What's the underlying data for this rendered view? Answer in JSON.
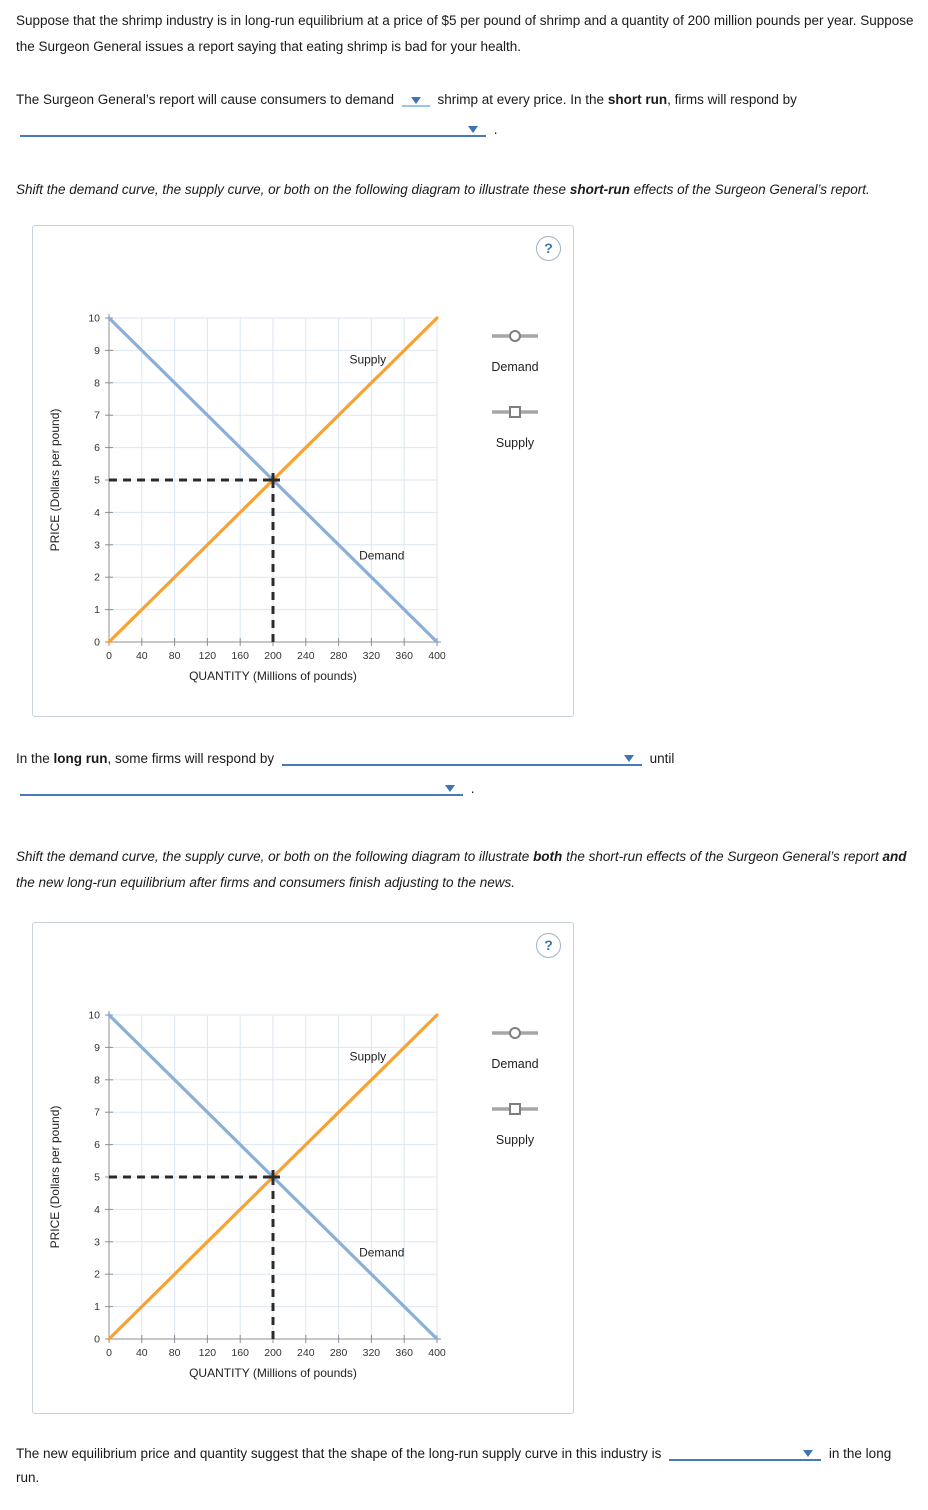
{
  "intro": {
    "text": "Suppose that the shrimp industry is in long-run equilibrium at a price of $5 per pound of shrimp and a quantity of 200 million pounds per year. Suppose the Surgeon General issues a report saying that eating shrimp is bad for your health."
  },
  "q1": {
    "part1": "The Surgeon General’s report will cause consumers to demand",
    "part2": "shrimp at every price. In the",
    "bold": "short run",
    "part3": ", firms will respond by",
    "period": "."
  },
  "instruction1": {
    "part1": "Shift the demand curve, the supply curve, or both on the following diagram to illustrate these",
    "bold": "short-run",
    "part2": "effects of the Surgeon General’s report."
  },
  "q2": {
    "part1": "In the",
    "bold": "long run",
    "part2": ", some firms will respond by",
    "part3": "until",
    "period": "."
  },
  "instruction2": {
    "part1": "Shift the demand curve, the supply curve, or both on the following diagram to illustrate",
    "bold1": "both",
    "part2": "the short-run effects of the Surgeon General’s report",
    "bold2": "and",
    "part3": "the new long-run equilibrium after firms and consumers finish adjusting to the news."
  },
  "q3": {
    "part1": "The new equilibrium price and quantity suggest that the shape of the long-run supply curve in this industry is",
    "part2": "in the long run."
  },
  "panel": {
    "help_label": "?",
    "tools": [
      {
        "label": "Demand",
        "marker": "circle"
      },
      {
        "label": "Supply",
        "marker": "square"
      }
    ]
  },
  "chart_data": [
    {
      "type": "line",
      "title": "",
      "xlabel": "QUANTITY (Millions of pounds)",
      "ylabel": "PRICE (Dollars per pound)",
      "xlim": [
        0,
        400
      ],
      "ylim": [
        0,
        10
      ],
      "xticks": [
        0,
        40,
        80,
        120,
        160,
        200,
        240,
        280,
        320,
        360,
        400
      ],
      "yticks": [
        0,
        1,
        2,
        3,
        4,
        5,
        6,
        7,
        8,
        9,
        10
      ],
      "grid": true,
      "series": [
        {
          "name": "Demand",
          "color": "#8aafd8",
          "x": [
            0,
            400
          ],
          "y": [
            10,
            0
          ],
          "label_pos": {
            "x": 305,
            "y": 2.55,
            "anchor": "start"
          }
        },
        {
          "name": "Supply",
          "color": "#f7a233",
          "x": [
            0,
            400
          ],
          "y": [
            0,
            10
          ],
          "label_pos": {
            "x": 338,
            "y": 8.6,
            "anchor": "end"
          }
        }
      ],
      "equilibrium": {
        "x": 200,
        "y": 5
      },
      "guides": {
        "price": 5,
        "quantity": 200
      }
    },
    {
      "type": "line",
      "title": "",
      "xlabel": "QUANTITY (Millions of pounds)",
      "ylabel": "PRICE (Dollars per pound)",
      "xlim": [
        0,
        400
      ],
      "ylim": [
        0,
        10
      ],
      "xticks": [
        0,
        40,
        80,
        120,
        160,
        200,
        240,
        280,
        320,
        360,
        400
      ],
      "yticks": [
        0,
        1,
        2,
        3,
        4,
        5,
        6,
        7,
        8,
        9,
        10
      ],
      "grid": true,
      "series": [
        {
          "name": "Demand",
          "color": "#8aafd8",
          "x": [
            0,
            400
          ],
          "y": [
            10,
            0
          ],
          "label_pos": {
            "x": 305,
            "y": 2.55,
            "anchor": "start"
          }
        },
        {
          "name": "Supply",
          "color": "#f7a233",
          "x": [
            0,
            400
          ],
          "y": [
            0,
            10
          ],
          "label_pos": {
            "x": 338,
            "y": 8.6,
            "anchor": "end"
          }
        }
      ],
      "equilibrium": {
        "x": 200,
        "y": 5
      },
      "guides": {
        "price": 5,
        "quantity": 200
      }
    }
  ]
}
